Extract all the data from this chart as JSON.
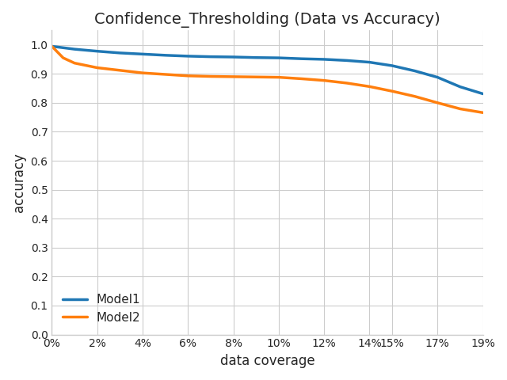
{
  "title": "Confidence_Thresholding (Data vs Accuracy)",
  "xlabel": "data coverage",
  "ylabel": "accuracy",
  "model1_color": "#1f77b4",
  "model2_color": "#ff7f0e",
  "model1_label": "Model1",
  "model2_label": "Model2",
  "x_ticks": [
    0,
    2,
    4,
    6,
    8,
    10,
    12,
    14,
    15,
    17,
    19
  ],
  "x_tick_labels": [
    "0%",
    "2%",
    "4%",
    "6%",
    "8%",
    "10%",
    "12%",
    "14%",
    "15%",
    "17%",
    "19%"
  ],
  "ylim": [
    0.0,
    1.05
  ],
  "xlim": [
    0,
    19
  ],
  "model1_x": [
    0,
    0.5,
    1,
    2,
    3,
    4,
    5,
    6,
    7,
    8,
    9,
    10,
    11,
    12,
    13,
    14,
    15,
    16,
    17,
    18,
    19
  ],
  "model1_y": [
    0.995,
    0.99,
    0.985,
    0.978,
    0.972,
    0.968,
    0.964,
    0.961,
    0.959,
    0.958,
    0.956,
    0.955,
    0.952,
    0.95,
    0.946,
    0.94,
    0.928,
    0.91,
    0.888,
    0.855,
    0.831
  ],
  "model2_x": [
    0,
    0.5,
    1,
    2,
    3,
    4,
    5,
    6,
    7,
    8,
    9,
    10,
    11,
    12,
    13,
    14,
    15,
    16,
    17,
    18,
    19
  ],
  "model2_y": [
    0.995,
    0.955,
    0.937,
    0.921,
    0.912,
    0.903,
    0.898,
    0.893,
    0.891,
    0.89,
    0.889,
    0.888,
    0.883,
    0.877,
    0.868,
    0.856,
    0.84,
    0.822,
    0.8,
    0.779,
    0.766
  ],
  "background_color": "#ffffff",
  "grid_color": "#cccccc",
  "legend_loc": "lower left",
  "linewidth": 2.5,
  "figsize": [
    6.4,
    4.8
  ],
  "dpi": 100
}
